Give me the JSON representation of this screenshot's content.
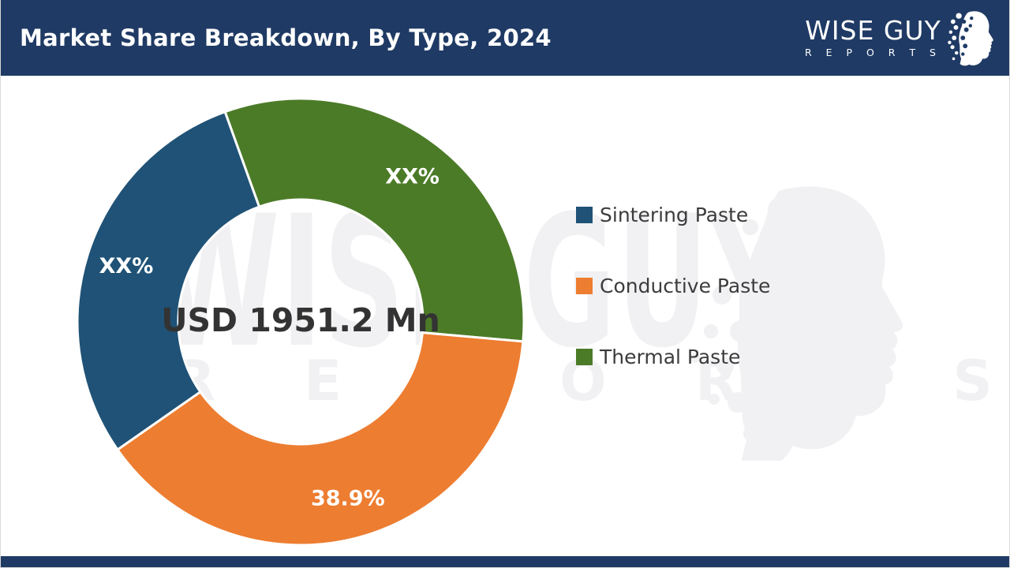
{
  "header": {
    "title": "Market Share Breakdown, By Type, 2024",
    "bg_color": "#1f3a64",
    "logo": {
      "name": "WISE GUY",
      "tagline": "R E P O R T S"
    }
  },
  "watermark": {
    "line1": "WISE GUY",
    "line2": "R E P O R T S"
  },
  "chart_data": {
    "type": "pie",
    "subtype": "donut",
    "title": "Market Share Breakdown, By Type, 2024",
    "center_label": "USD 1951.2 Mn",
    "categories": [
      "Sintering Paste",
      "Conductive Paste",
      "Thermal Paste"
    ],
    "values": [
      29.2,
      38.9,
      31.9
    ],
    "slice_labels": [
      "XX%",
      "38.9%",
      "XX%"
    ],
    "colors": [
      "#1f5276",
      "#ed7d31",
      "#4c7b28"
    ],
    "start_angle_deg": 340.2,
    "direction": "clockwise",
    "legend_position": "right",
    "slice_label_color": "#ffffff",
    "gap_color": "#ffffff"
  }
}
